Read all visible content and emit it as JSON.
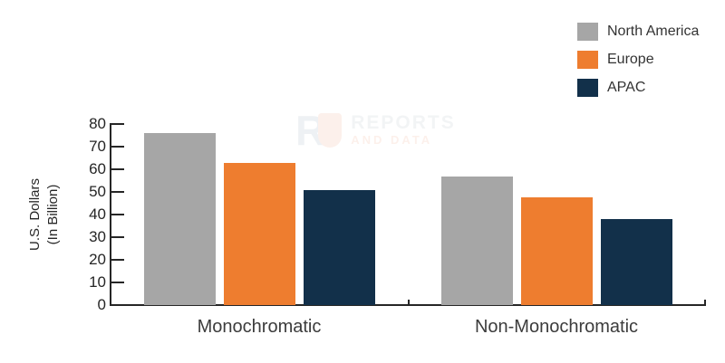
{
  "chart_data": {
    "type": "bar",
    "title": "",
    "categories": [
      "Monochromatic",
      "Non-Monochromatic"
    ],
    "series": [
      {
        "name": "North America",
        "color": "#a6a6a6",
        "values": [
          76,
          57
        ]
      },
      {
        "name": "Europe",
        "color": "#ee7d2f",
        "values": [
          63,
          47.5
        ]
      },
      {
        "name": "APAC",
        "color": "#12304a",
        "values": [
          51,
          38
        ]
      }
    ],
    "ylabel_line1": "U.S. Dollars",
    "ylabel_line2": "(In Billion)",
    "xlabel": "",
    "ylim": [
      0,
      80
    ],
    "yticks": [
      0,
      10,
      20,
      30,
      40,
      50,
      60,
      70,
      80
    ],
    "grid": false,
    "legend_position": "top-right"
  },
  "watermark": {
    "letter": "R",
    "line1": "REPORTS",
    "line2": "AND DATA"
  },
  "colors": {
    "axis": "#262626",
    "tick_label": "#262626",
    "category_label": "#3c3c3c",
    "legend_text": "#333333",
    "background": "#ffffff"
  }
}
